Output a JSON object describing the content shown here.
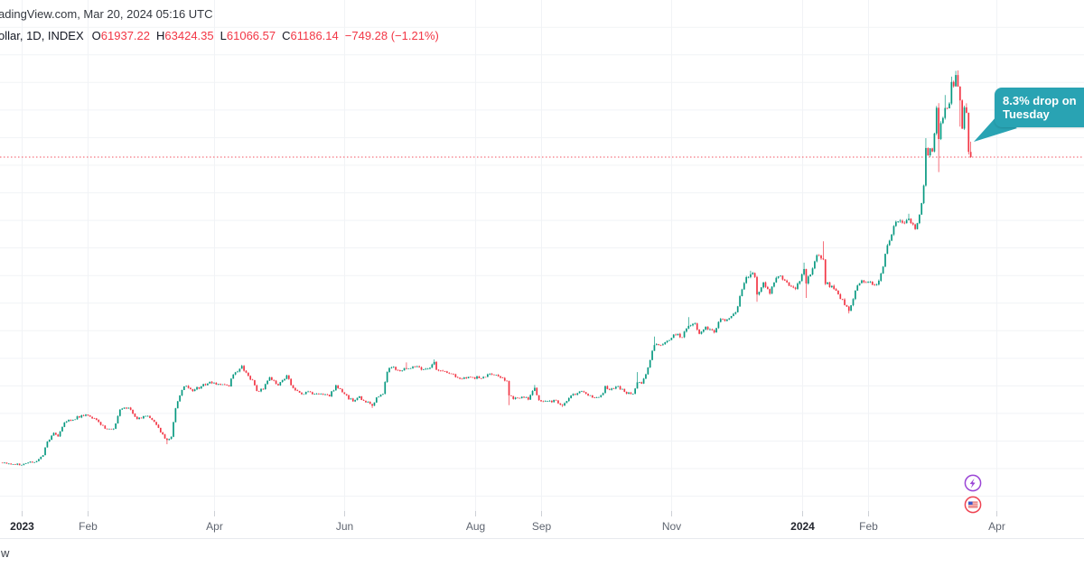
{
  "header": {
    "attribution": "adingView.com, Mar 20, 2024 05:16 UTC",
    "legend": {
      "symbol_fragment": "ollar, 1D, INDEX",
      "open_label": "O",
      "open": "61937.22",
      "high_label": "H",
      "high": "63424.35",
      "low_label": "L",
      "low": "61066.57",
      "close_label": "C",
      "close": "61186.14",
      "change": "−749.28 (−1.21%)"
    }
  },
  "annotation": {
    "line1": "8.3% drop on",
    "line2": "Tuesday"
  },
  "watermark_fragment": "w",
  "timeline_markers": [
    {
      "name": "lightning-event",
      "ring_color": "#9b45d6"
    },
    {
      "name": "us-flag-event",
      "ring_color": "#ef4352"
    }
  ],
  "colors": {
    "up": "#089981",
    "down": "#f23645",
    "price_line": "#f23645",
    "annotation_bg": "#29a3b3",
    "grid": "#f1f3f6",
    "tick": "#cdd0d6",
    "axis_text": "#5f6570",
    "axis_year_text": "#23262e",
    "separator": "#e8eaee",
    "legend_text": "#131722",
    "legend_value": "#f23645",
    "marker_purple": "#9b45d6",
    "marker_red": "#ef4352",
    "flag_blue": "#3956c9"
  },
  "chart_data": {
    "type": "candlestick",
    "interval": "1D",
    "visible_date_range": [
      "2022-12-23",
      "2024-03-20"
    ],
    "last_ohlc": {
      "open": 61937.22,
      "high": 63424.35,
      "low": 61066.57,
      "close": 61186.14,
      "change": -749.28,
      "change_pct": -1.21
    },
    "price_line_value": 61186.14,
    "y_axis": {
      "gridline_interval": 4000,
      "approx_visible_range": [
        11000,
        81000
      ],
      "labels_visible": false,
      "grid": true
    },
    "x_labels": [
      {
        "text": "2023",
        "date": "2023-01-01",
        "bold": true
      },
      {
        "text": "Feb",
        "date": "2023-02-01"
      },
      {
        "text": "Apr",
        "date": "2023-04-01"
      },
      {
        "text": "Jun",
        "date": "2023-06-01"
      },
      {
        "text": "Aug",
        "date": "2023-08-01"
      },
      {
        "text": "Sep",
        "date": "2023-09-01"
      },
      {
        "text": "Nov",
        "date": "2023-11-01"
      },
      {
        "text": "2024",
        "date": "2024-01-01",
        "bold": true
      },
      {
        "text": "Feb",
        "date": "2024-02-01"
      },
      {
        "text": "Apr",
        "date": "2024-04-01"
      }
    ],
    "keyframes": [
      [
        "2022-12-23",
        16820
      ],
      [
        "2022-12-28",
        16640
      ],
      [
        "2023-01-01",
        16540
      ],
      [
        "2023-01-04",
        16860
      ],
      [
        "2023-01-08",
        17100
      ],
      [
        "2023-01-11",
        17950
      ],
      [
        "2023-01-13",
        19920
      ],
      [
        "2023-01-16",
        21180
      ],
      [
        "2023-01-18",
        20680
      ],
      [
        "2023-01-21",
        22700
      ],
      [
        "2023-01-25",
        23060
      ],
      [
        "2023-01-29",
        23740
      ],
      [
        "2023-02-01",
        23720
      ],
      [
        "2023-02-06",
        22760
      ],
      [
        "2023-02-09",
        21800
      ],
      [
        "2023-02-13",
        21780
      ],
      [
        "2023-02-16",
        24570
      ],
      [
        "2023-02-20",
        24850
      ],
      [
        "2023-02-24",
        23180
      ],
      [
        "2023-03-01",
        23640
      ],
      [
        "2023-03-05",
        22350
      ],
      [
        "2023-03-09",
        20360
      ],
      [
        "2023-03-10",
        20150,
        null,
        19550
      ],
      [
        "2023-03-12",
        20620
      ],
      [
        "2023-03-14",
        24750
      ],
      [
        "2023-03-17",
        27400
      ],
      [
        "2023-03-19",
        28000
      ],
      [
        "2023-03-22",
        27250
      ],
      [
        "2023-03-26",
        27950
      ],
      [
        "2023-03-29",
        28350
      ],
      [
        "2023-04-01",
        28470
      ],
      [
        "2023-04-04",
        28170
      ],
      [
        "2023-04-08",
        27920
      ],
      [
        "2023-04-10",
        29650
      ],
      [
        "2023-04-14",
        30900,
        31050
      ],
      [
        "2023-04-17",
        29450
      ],
      [
        "2023-04-19",
        28820
      ],
      [
        "2023-04-21",
        27260
      ],
      [
        "2023-04-24",
        27520
      ],
      [
        "2023-04-27",
        29250
      ],
      [
        "2023-05-01",
        28080
      ],
      [
        "2023-05-05",
        29530
      ],
      [
        "2023-05-08",
        27690
      ],
      [
        "2023-05-12",
        26800
      ],
      [
        "2023-05-15",
        27190
      ],
      [
        "2023-05-18",
        26830
      ],
      [
        "2023-05-22",
        26750
      ],
      [
        "2023-05-25",
        26480
      ],
      [
        "2023-05-28",
        28080
      ],
      [
        "2023-06-01",
        26820
      ],
      [
        "2023-06-05",
        25750
      ],
      [
        "2023-06-08",
        26480
      ],
      [
        "2023-06-10",
        25850
      ],
      [
        "2023-06-14",
        25120,
        null,
        24800
      ],
      [
        "2023-06-16",
        26330
      ],
      [
        "2023-06-19",
        26840
      ],
      [
        "2023-06-21",
        30020
      ],
      [
        "2023-06-23",
        30690
      ],
      [
        "2023-06-26",
        30270
      ],
      [
        "2023-06-30",
        30470,
        31400
      ],
      [
        "2023-07-04",
        30770
      ],
      [
        "2023-07-07",
        30340
      ],
      [
        "2023-07-11",
        30620
      ],
      [
        "2023-07-13",
        31470,
        31830
      ],
      [
        "2023-07-14",
        30330
      ],
      [
        "2023-07-17",
        30140
      ],
      [
        "2023-07-20",
        29800
      ],
      [
        "2023-07-24",
        29180
      ],
      [
        "2023-07-27",
        29220
      ],
      [
        "2023-07-31",
        29230
      ],
      [
        "2023-08-04",
        29080
      ],
      [
        "2023-08-08",
        29760
      ],
      [
        "2023-08-12",
        29400
      ],
      [
        "2023-08-16",
        28700
      ],
      [
        "2023-08-17",
        26620,
        null,
        25200
      ],
      [
        "2023-08-19",
        26100
      ],
      [
        "2023-08-23",
        26430
      ],
      [
        "2023-08-26",
        26010
      ],
      [
        "2023-08-29",
        27720,
        28140
      ],
      [
        "2023-08-31",
        25930
      ],
      [
        "2023-09-04",
        25810
      ],
      [
        "2023-09-08",
        25900
      ],
      [
        "2023-09-11",
        25160,
        null,
        24930
      ],
      [
        "2023-09-15",
        26600
      ],
      [
        "2023-09-19",
        27210
      ],
      [
        "2023-09-23",
        26580
      ],
      [
        "2023-09-27",
        26350
      ],
      [
        "2023-09-30",
        26960
      ],
      [
        "2023-10-01",
        27970
      ],
      [
        "2023-10-03",
        27430
      ],
      [
        "2023-10-07",
        27950
      ],
      [
        "2023-10-11",
        26870
      ],
      [
        "2023-10-14",
        26860
      ],
      [
        "2023-10-16",
        28520,
        30000
      ],
      [
        "2023-10-18",
        28330
      ],
      [
        "2023-10-20",
        29680
      ],
      [
        "2023-10-23",
        33080
      ],
      [
        "2023-10-24",
        33920,
        35150
      ],
      [
        "2023-10-27",
        33910
      ],
      [
        "2023-10-31",
        34650
      ],
      [
        "2023-11-02",
        35440
      ],
      [
        "2023-11-06",
        35050
      ],
      [
        "2023-11-09",
        36700,
        37970
      ],
      [
        "2023-11-12",
        37060
      ],
      [
        "2023-11-14",
        35550
      ],
      [
        "2023-11-17",
        36590
      ],
      [
        "2023-11-21",
        35750
      ],
      [
        "2023-11-24",
        37710
      ],
      [
        "2023-11-28",
        37820
      ],
      [
        "2023-12-01",
        38680
      ],
      [
        "2023-12-04",
        41990
      ],
      [
        "2023-12-06",
        43770
      ],
      [
        "2023-12-08",
        44170,
        44700
      ],
      [
        "2023-12-10",
        43790
      ],
      [
        "2023-12-11",
        41250,
        null,
        40200
      ],
      [
        "2023-12-14",
        43020
      ],
      [
        "2023-12-17",
        41370
      ],
      [
        "2023-12-20",
        43670
      ],
      [
        "2023-12-22",
        43970
      ],
      [
        "2023-12-26",
        42520
      ],
      [
        "2023-12-29",
        42070
      ],
      [
        "2024-01-01",
        44170
      ],
      [
        "2024-01-02",
        44950,
        45880
      ],
      [
        "2024-01-03",
        42850,
        null,
        40750
      ],
      [
        "2024-01-05",
        44150
      ],
      [
        "2024-01-08",
        46950
      ],
      [
        "2024-01-11",
        46340,
        48970
      ],
      [
        "2024-01-12",
        42780
      ],
      [
        "2024-01-15",
        42510
      ],
      [
        "2024-01-18",
        41280
      ],
      [
        "2024-01-22",
        39500
      ],
      [
        "2024-01-23",
        38870,
        null,
        38505
      ],
      [
        "2024-01-26",
        41820
      ],
      [
        "2024-01-29",
        43300
      ],
      [
        "2024-02-01",
        43080
      ],
      [
        "2024-02-05",
        42700
      ],
      [
        "2024-02-08",
        45300
      ],
      [
        "2024-02-09",
        47150
      ],
      [
        "2024-02-12",
        49950
      ],
      [
        "2024-02-14",
        51800
      ],
      [
        "2024-02-17",
        51660
      ],
      [
        "2024-02-20",
        52250,
        52970
      ],
      [
        "2024-02-23",
        50730
      ],
      [
        "2024-02-26",
        54500
      ],
      [
        "2024-02-27",
        57050
      ],
      [
        "2024-02-28",
        62500,
        63930
      ],
      [
        "2024-02-29",
        61430
      ],
      [
        "2024-03-01",
        62440
      ],
      [
        "2024-03-02",
        61990
      ],
      [
        "2024-03-04",
        68330
      ],
      [
        "2024-03-05",
        63800,
        69000,
        59005
      ],
      [
        "2024-03-06",
        66100
      ],
      [
        "2024-03-07",
        66850
      ],
      [
        "2024-03-08",
        68300,
        70180
      ],
      [
        "2024-03-09",
        68250
      ],
      [
        "2024-03-10",
        68955
      ],
      [
        "2024-03-11",
        72080,
        72850
      ],
      [
        "2024-03-12",
        71450
      ],
      [
        "2024-03-13",
        73080,
        73680
      ],
      [
        "2024-03-14",
        71400,
        73750
      ],
      [
        "2024-03-15",
        69400,
        null,
        65600
      ],
      [
        "2024-03-16",
        65300
      ],
      [
        "2024-03-17",
        68390
      ],
      [
        "2024-03-18",
        67610,
        68990
      ],
      [
        "2024-03-19",
        61935,
        null,
        61555
      ],
      [
        "2024-03-20",
        61186,
        63424,
        61066,
        61937
      ]
    ]
  }
}
